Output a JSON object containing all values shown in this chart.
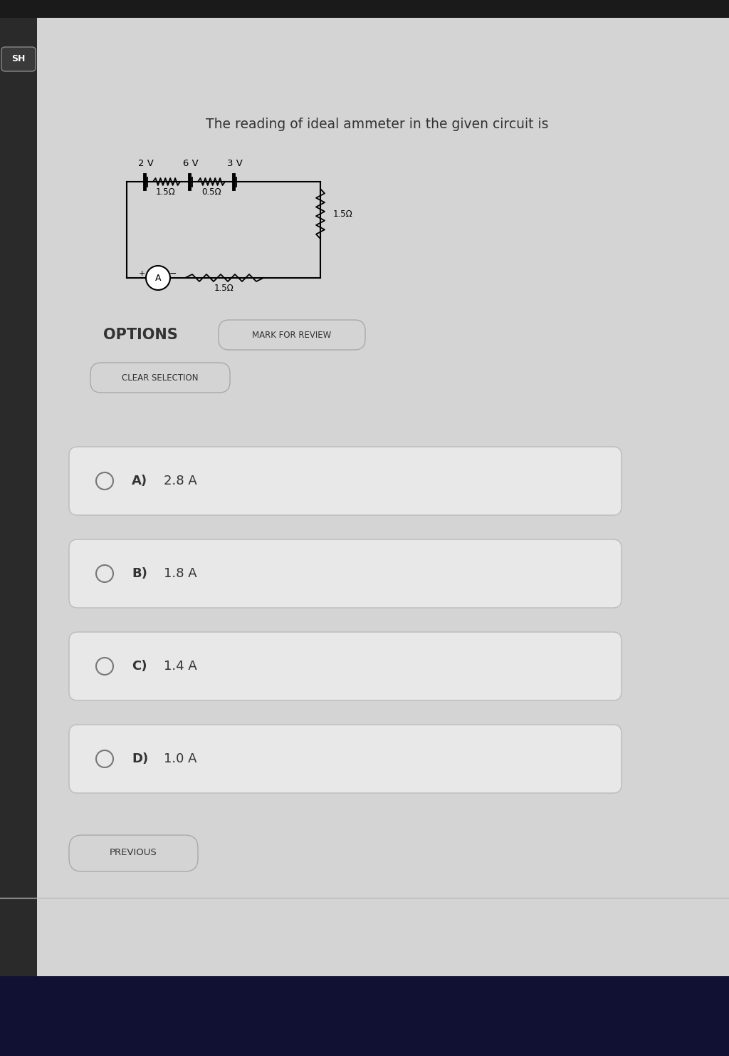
{
  "bg_color": "#d4d4d4",
  "sidebar_color": "#2a2a2a",
  "sidebar_label": "SH",
  "title_text": "The reading of ideal ammeter in the given circuit is",
  "title_fontsize": 13.5,
  "options_label": "OPTIONS",
  "mark_review_text": "MARK FOR REVIEW",
  "clear_selection_text": "CLEAR SELECTION",
  "choices": [
    {
      "label": "A)",
      "text": "2.8 A"
    },
    {
      "label": "B)",
      "text": "1.8 A"
    },
    {
      "label": "C)",
      "text": "1.4 A"
    },
    {
      "label": "D)",
      "text": "1.0 A"
    }
  ],
  "previous_text": "PREVIOUS",
  "text_color": "#333333",
  "choice_box_color": "#e8e8e8",
  "choice_border_color": "#bbbbbb",
  "button_border_color": "#aaaaaa",
  "footer_color": "#111133"
}
